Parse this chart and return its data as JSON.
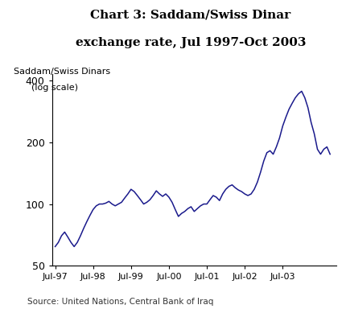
{
  "title_line1": "Chart 3: Saddam/Swiss Dinar",
  "title_line2": "exchange rate, Jul 1997-Oct 2003",
  "ylabel_line1": "Saddam/Swiss Dinars",
  "ylabel_line2": "(log scale)",
  "source_text": "Source: United Nations, Central Bank of Iraq",
  "line_color": "#1a1a8c",
  "background_color": "#ffffff",
  "yticks": [
    50,
    100,
    200,
    400
  ],
  "ylim": [
    50,
    430
  ],
  "xtick_labels": [
    "Jul-97",
    "Jul-98",
    "Jul-99",
    "Jul-00",
    "Jul-01",
    "Jul-02",
    "Jul-03"
  ],
  "x": [
    0,
    1,
    2,
    3,
    4,
    5,
    6,
    7,
    8,
    9,
    10,
    11,
    12,
    13,
    14,
    15,
    16,
    17,
    18,
    19,
    20,
    21,
    22,
    23,
    24,
    25,
    26,
    27,
    28,
    29,
    30,
    31,
    32,
    33,
    34,
    35,
    36,
    37,
    38,
    39,
    40,
    41,
    42,
    43,
    44,
    45,
    46,
    47,
    48,
    49,
    50,
    51,
    52,
    53,
    54,
    55,
    56,
    57,
    58,
    59,
    60,
    61,
    62,
    63,
    64,
    65,
    66,
    67,
    68,
    69,
    70,
    71,
    72,
    73,
    74,
    75,
    76,
    77,
    78,
    79,
    80,
    81,
    82,
    83,
    84,
    85,
    86,
    87
  ],
  "y": [
    62,
    65,
    70,
    73,
    69,
    65,
    62,
    65,
    70,
    76,
    82,
    88,
    94,
    98,
    100,
    100,
    101,
    103,
    100,
    98,
    100,
    102,
    107,
    112,
    118,
    115,
    110,
    105,
    100,
    102,
    105,
    110,
    116,
    112,
    109,
    112,
    108,
    102,
    94,
    87,
    90,
    92,
    95,
    97,
    92,
    95,
    98,
    100,
    100,
    105,
    110,
    108,
    104,
    112,
    118,
    122,
    124,
    120,
    117,
    115,
    112,
    110,
    112,
    118,
    128,
    143,
    162,
    178,
    182,
    175,
    190,
    210,
    240,
    265,
    290,
    310,
    330,
    345,
    355,
    330,
    295,
    250,
    220,
    185,
    175,
    185,
    190,
    175
  ]
}
